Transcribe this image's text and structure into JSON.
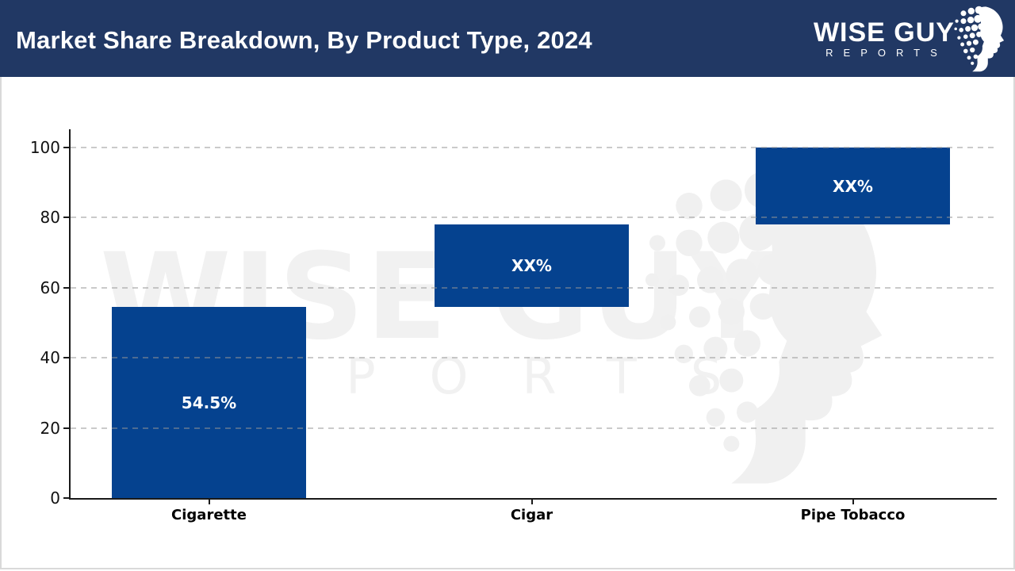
{
  "header": {
    "title": "Market Share Breakdown, By Product Type, 2024",
    "bg_color": "#213864",
    "logo_line1": "WISE GUY",
    "logo_line2": "REPORTS"
  },
  "watermark": {
    "line1": "WISE GUY",
    "line2": "REPORTS",
    "icon": "wiseguy-head-watermark"
  },
  "chart_data": {
    "type": "bar",
    "subtype": "floating-waterfall",
    "title": "Market Share Breakdown, By Product Type, 2024",
    "categories": [
      "Cigarette",
      "Cigar",
      "Pipe Tobacco"
    ],
    "series": [
      {
        "name": "Market Share (%)",
        "segments": [
          {
            "category": "Cigarette",
            "start": 0,
            "end": 54.5,
            "label": "54.5%"
          },
          {
            "category": "Cigar",
            "start": 54.5,
            "end": 78,
            "label": "XX%"
          },
          {
            "category": "Pipe Tobacco",
            "start": 78,
            "end": 100,
            "label": "XX%"
          }
        ]
      }
    ],
    "yticks": [
      0,
      20,
      40,
      60,
      80,
      100
    ],
    "ylim": [
      0,
      105
    ],
    "xlabel": "",
    "ylabel": "",
    "legend": "none",
    "grid": "horizontal-dashed-above-bars",
    "bar_color": "#05428F",
    "bar_label_color": "#ffffff",
    "axis_color": "#1a1a1a",
    "gridline_color": "#c8c8c8",
    "watermark_color": "#f1f1f1"
  }
}
